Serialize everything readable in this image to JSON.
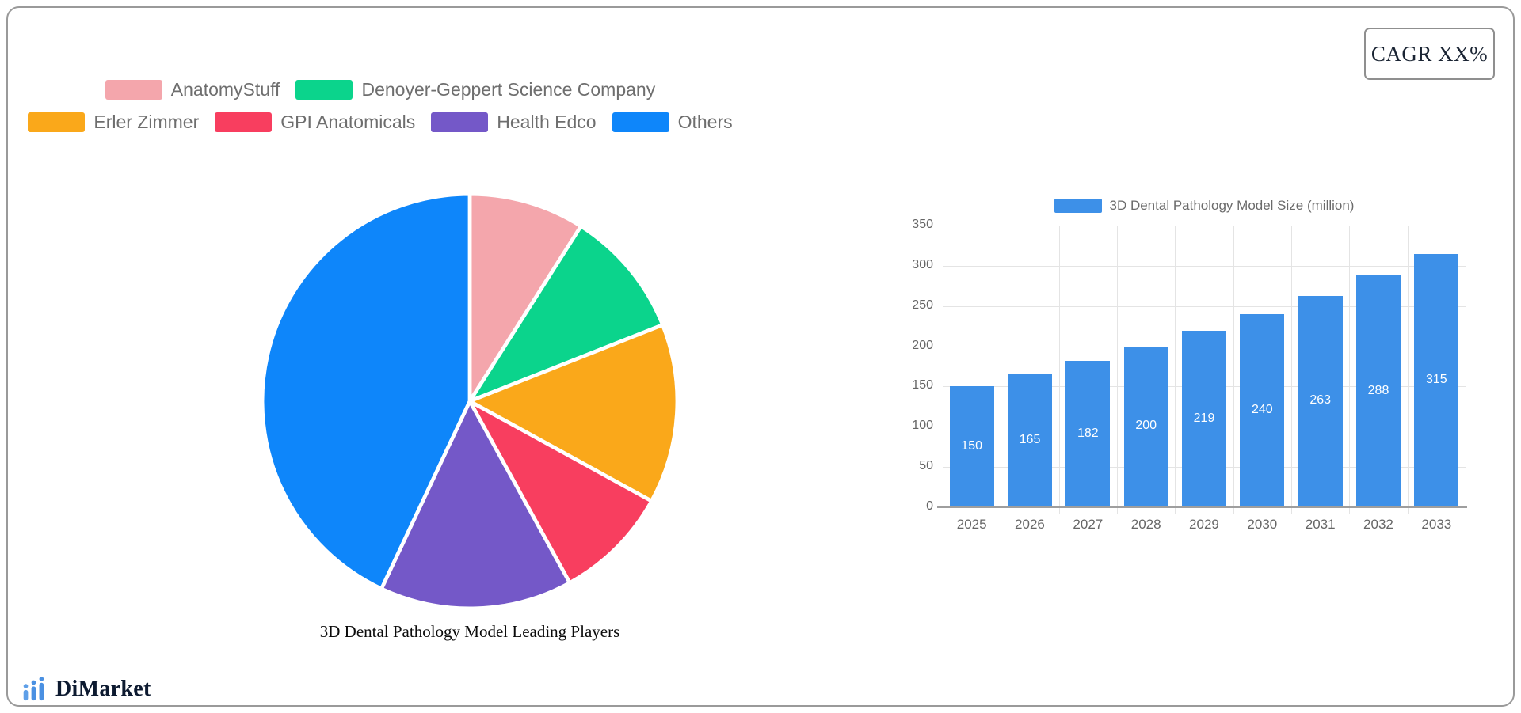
{
  "cagr_badge": {
    "label": "CAGR XX%"
  },
  "logo": {
    "text": "DiMarket",
    "icon": "bar-chart-icon",
    "icon_color": "#4a90e2",
    "text_color": "#0d1a30"
  },
  "frame": {
    "border_color": "#9a9a9a"
  },
  "chart_data": [
    {
      "type": "pie",
      "title": "3D Dental Pathology Model Leading Players",
      "legend_position": "top",
      "labels": [
        "AnatomyStuff",
        "Denoyer-Geppert Science Company",
        "Erler Zimmer",
        "GPI Anatomicals",
        "Health Edco",
        "Others"
      ],
      "values": [
        9,
        10,
        14,
        9,
        15,
        43
      ],
      "unit": "%",
      "colors": [
        "#F4A6AC",
        "#0BD48C",
        "#FAA81A",
        "#F83E5F",
        "#7458C8",
        "#0E86FA"
      ],
      "legend_rows": [
        [
          0,
          1
        ],
        [
          2,
          3,
          4,
          5
        ]
      ],
      "slice_border_color": "#ffffff",
      "start_angle_deg": 0,
      "direction": "clockwise"
    },
    {
      "type": "bar",
      "legend_label": "3D Dental Pathology Model Size (million)",
      "categories": [
        "2025",
        "2026",
        "2027",
        "2028",
        "2029",
        "2030",
        "2031",
        "2032",
        "2033"
      ],
      "values": [
        150,
        165,
        182,
        200,
        219,
        240,
        263,
        288,
        315
      ],
      "xlabel": "",
      "ylabel": "",
      "ylim": [
        0,
        350
      ],
      "ytick_step": 50,
      "yticks": [
        0,
        50,
        100,
        150,
        200,
        250,
        300,
        350
      ],
      "bar_color": "#3D90E8",
      "value_label_color": "#ffffff",
      "axis_label_color": "#666666",
      "grid": true,
      "legend_position": "top"
    }
  ]
}
